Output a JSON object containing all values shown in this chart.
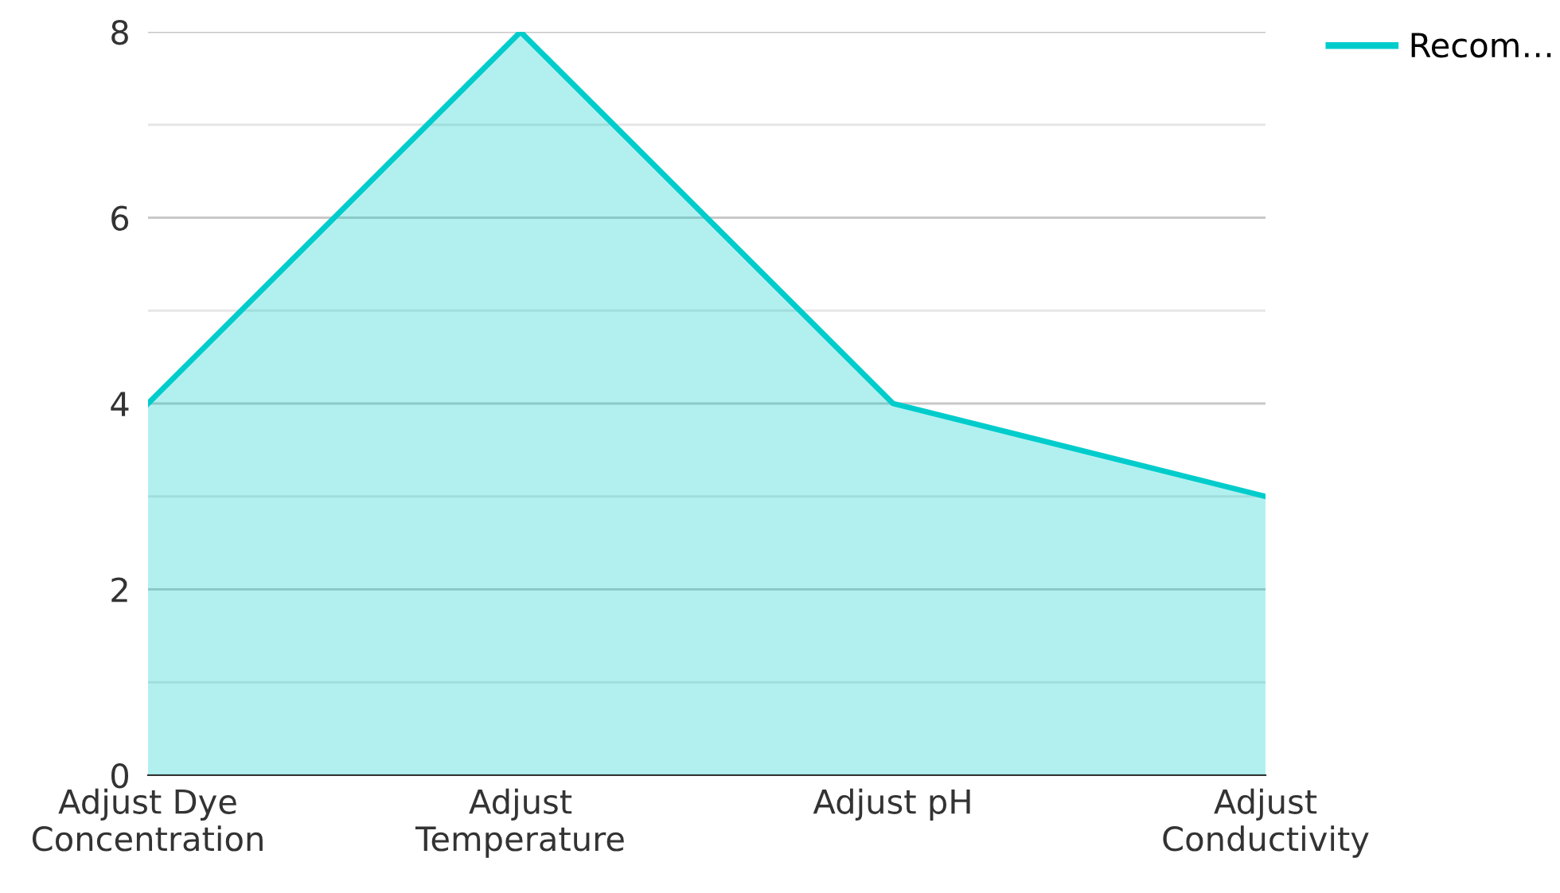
{
  "chart_data": {
    "type": "area",
    "categories": [
      "Adjust Dye\nConcentration",
      "Adjust\nTemperature",
      "Adjust pH",
      "Adjust\nConductivity"
    ],
    "series": [
      {
        "name": "Recom…",
        "color": "#00cccc",
        "values": [
          4,
          8,
          4,
          3
        ]
      }
    ],
    "ylim": [
      0,
      8
    ],
    "yticks": [
      0,
      {
        "value": 1,
        "label": null
      },
      2,
      {
        "value": 3,
        "label": null
      },
      4,
      {
        "value": 5,
        "label": null
      },
      6,
      {
        "value": 7,
        "label": null
      },
      8
    ],
    "grid": "y",
    "legend": "top right",
    "marker": "none",
    "line_style": "solid"
  }
}
